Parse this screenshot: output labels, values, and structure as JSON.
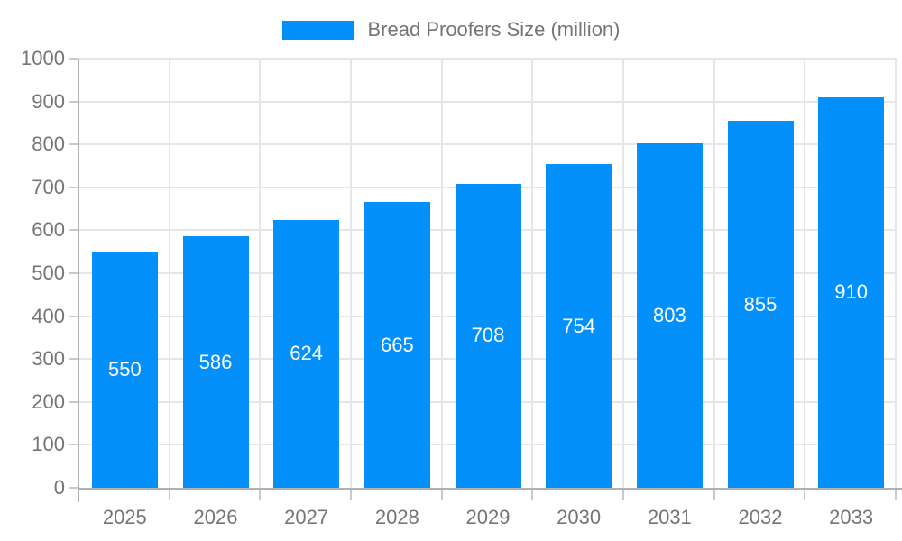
{
  "chart_data": {
    "type": "bar",
    "title": "Bread Proofers Size (million)",
    "legend": {
      "label": "Bread Proofers Size (million)",
      "position": "top"
    },
    "categories": [
      "2025",
      "2026",
      "2027",
      "2028",
      "2029",
      "2030",
      "2031",
      "2032",
      "2033"
    ],
    "values": [
      550,
      586,
      624,
      665,
      708,
      754,
      803,
      855,
      910
    ],
    "xlabel": "",
    "ylabel": "",
    "ylim": [
      0,
      1000
    ],
    "yticks": [
      0,
      100,
      200,
      300,
      400,
      500,
      600,
      700,
      800,
      900,
      1000
    ],
    "grid": true,
    "value_labels_inside_bars": true,
    "colors": {
      "bar": "#0490fa",
      "value_label": "#ffffff",
      "axis_text": "#757575",
      "grid_line": "#e6e6e6",
      "axis_line": "#b0b0b0",
      "tick_line": "#c9c9c9",
      "background": "#ffffff"
    }
  }
}
